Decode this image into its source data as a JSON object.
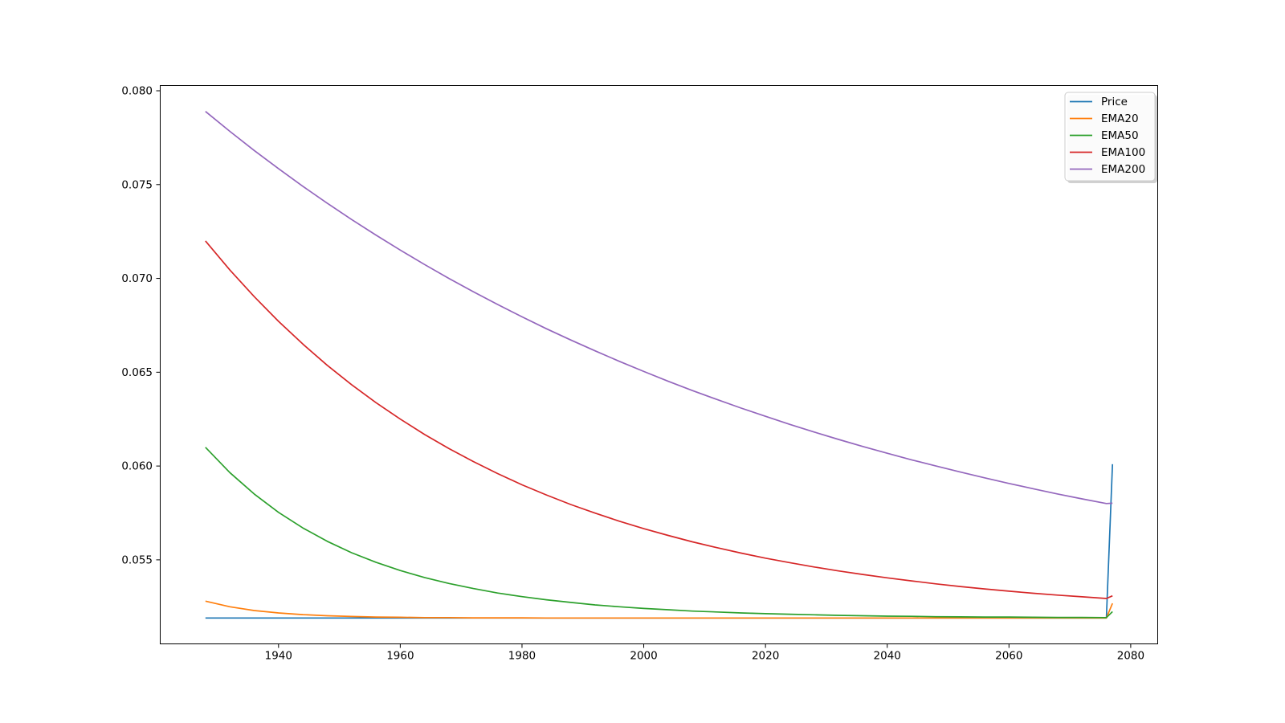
{
  "figure": {
    "background": "#ffffff",
    "text_color": "#000000",
    "spine_color": "#000000",
    "legend_border_color": "#cccccc",
    "legend_background": "#ffffff"
  },
  "chart_data": {
    "type": "line",
    "title": "",
    "xlabel": "",
    "ylabel": "",
    "grid": false,
    "legend_location": "upper right",
    "xlim": [
      1920.5,
      2084.5
    ],
    "ylim": [
      0.0505,
      0.0803
    ],
    "xticks": [
      1940,
      1960,
      1980,
      2000,
      2020,
      2040,
      2060,
      2080
    ],
    "xtick_labels": [
      "1940",
      "1960",
      "1980",
      "2000",
      "2020",
      "2040",
      "2060",
      "2080"
    ],
    "yticks": [
      0.055,
      0.06,
      0.065,
      0.07,
      0.075,
      0.08
    ],
    "ytick_labels": [
      "0.055",
      "0.060",
      "0.065",
      "0.070",
      "0.075",
      "0.080"
    ],
    "x": [
      1928,
      1932,
      1936,
      1940,
      1944,
      1948,
      1952,
      1956,
      1960,
      1964,
      1968,
      1972,
      1976,
      1980,
      1984,
      1988,
      1992,
      1996,
      2000,
      2004,
      2008,
      2012,
      2016,
      2020,
      2024,
      2028,
      2032,
      2036,
      2040,
      2044,
      2048,
      2052,
      2056,
      2060,
      2064,
      2068,
      2072,
      2076,
      2077
    ],
    "series": [
      {
        "name": "Price",
        "color": "#1f77b4",
        "values": [
          0.0519,
          0.0519,
          0.0519,
          0.0519,
          0.0519,
          0.0519,
          0.0519,
          0.0519,
          0.0519,
          0.0519,
          0.0519,
          0.0519,
          0.0519,
          0.0519,
          0.0519,
          0.0519,
          0.0519,
          0.0519,
          0.0519,
          0.0519,
          0.0519,
          0.0519,
          0.0519,
          0.0519,
          0.0519,
          0.0519,
          0.0519,
          0.0519,
          0.0519,
          0.0519,
          0.0519,
          0.0519,
          0.0519,
          0.0519,
          0.0519,
          0.0519,
          0.0519,
          0.0519,
          0.0601
        ]
      },
      {
        "name": "EMA20",
        "color": "#ff7f0e",
        "values": [
          0.0528,
          0.0525,
          0.0523,
          0.05217,
          0.05208,
          0.05202,
          0.05198,
          0.05195,
          0.05194,
          0.05192,
          0.05192,
          0.05191,
          0.05191,
          0.05191,
          0.0519,
          0.0519,
          0.0519,
          0.0519,
          0.0519,
          0.0519,
          0.0519,
          0.0519,
          0.0519,
          0.0519,
          0.0519,
          0.0519,
          0.0519,
          0.0519,
          0.0519,
          0.0519,
          0.0519,
          0.0519,
          0.0519,
          0.0519,
          0.0519,
          0.0519,
          0.0519,
          0.0519,
          0.05268
        ]
      },
      {
        "name": "EMA50",
        "color": "#2ca02c",
        "values": [
          0.061,
          0.05965,
          0.05851,
          0.05753,
          0.0567,
          0.05599,
          0.05538,
          0.05487,
          0.05443,
          0.05406,
          0.05374,
          0.05347,
          0.05323,
          0.05304,
          0.05287,
          0.05273,
          0.0526,
          0.0525,
          0.05241,
          0.05234,
          0.05227,
          0.05222,
          0.05217,
          0.05213,
          0.0521,
          0.05207,
          0.05204,
          0.05202,
          0.052,
          0.05199,
          0.05197,
          0.05196,
          0.05195,
          0.05195,
          0.05194,
          0.05193,
          0.05193,
          0.05192,
          0.05224
        ]
      },
      {
        "name": "EMA100",
        "color": "#d62728",
        "values": [
          0.072,
          0.07045,
          0.06903,
          0.06771,
          0.0665,
          0.06537,
          0.06434,
          0.06338,
          0.0625,
          0.06168,
          0.06093,
          0.06024,
          0.0596,
          0.059,
          0.05846,
          0.05795,
          0.05749,
          0.05706,
          0.05666,
          0.0563,
          0.05596,
          0.05565,
          0.05536,
          0.05509,
          0.05485,
          0.05462,
          0.05441,
          0.05422,
          0.05404,
          0.05388,
          0.05372,
          0.05358,
          0.05345,
          0.05333,
          0.05322,
          0.05312,
          0.05303,
          0.05294,
          0.05308
        ]
      },
      {
        "name": "EMA200",
        "color": "#9467bd",
        "values": [
          0.0789,
          0.07784,
          0.07682,
          0.07585,
          0.07491,
          0.07401,
          0.07314,
          0.07231,
          0.07151,
          0.07074,
          0.07,
          0.06929,
          0.06861,
          0.06795,
          0.06732,
          0.06672,
          0.06614,
          0.06558,
          0.06504,
          0.06452,
          0.06402,
          0.06355,
          0.06309,
          0.06265,
          0.06222,
          0.06181,
          0.06142,
          0.06104,
          0.06068,
          0.06033,
          0.06,
          0.05968,
          0.05937,
          0.05907,
          0.05879,
          0.05851,
          0.05825,
          0.058,
          0.05802
        ]
      }
    ]
  }
}
